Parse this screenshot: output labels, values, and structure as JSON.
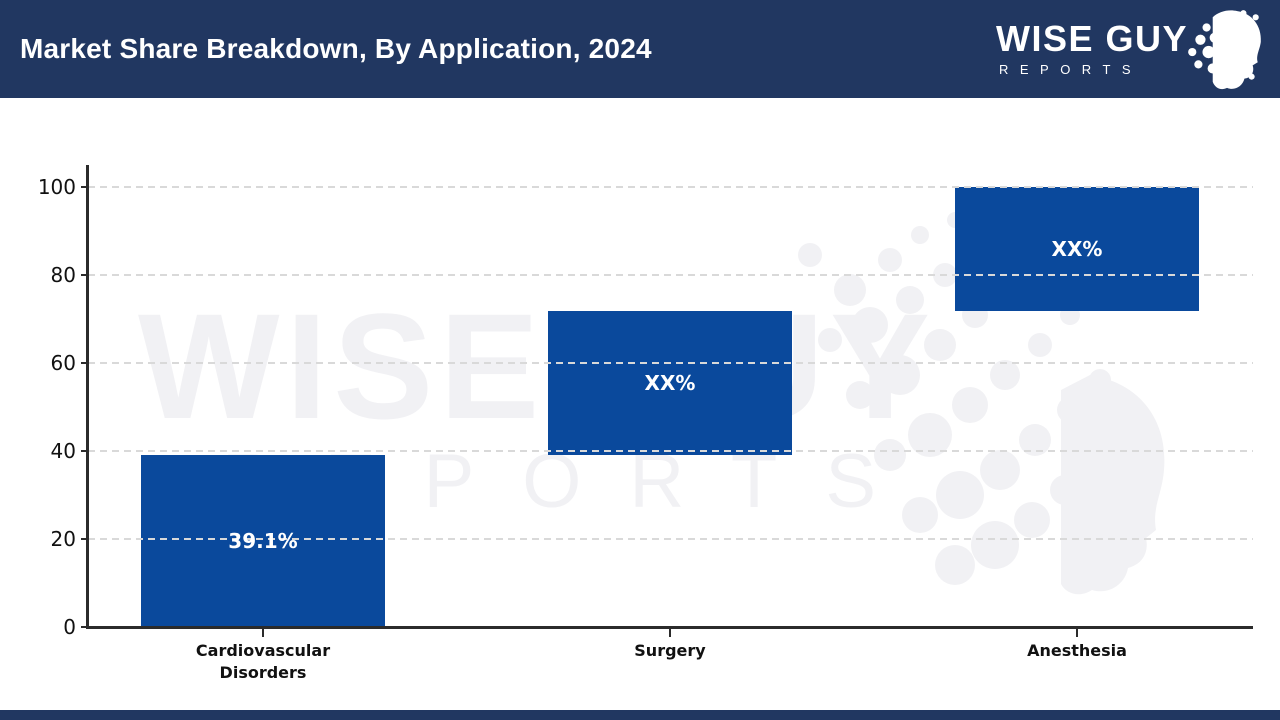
{
  "header": {
    "title": "Market Share Breakdown, By Application, 2024",
    "logo": {
      "line1": "WISE GUY",
      "line2": "REPORTS"
    }
  },
  "watermark": {
    "line1": "WISE GUY",
    "line2": "REPORTS"
  },
  "chart_data": {
    "type": "bar",
    "subtype": "waterfall",
    "title": "Market Share Breakdown, By Application, 2024",
    "categories": [
      "Cardiovascular Disorders",
      "Surgery",
      "Anesthesia"
    ],
    "segments": [
      {
        "category": "Cardiovascular Disorders",
        "start": 0,
        "end": 39.1,
        "label": "39.1%"
      },
      {
        "category": "Surgery",
        "start": 39.1,
        "end": 71.8,
        "label": "XX%"
      },
      {
        "category": "Anesthesia",
        "start": 71.8,
        "end": 100,
        "label": "XX%"
      }
    ],
    "ylim": [
      0,
      100
    ],
    "yticks": [
      0,
      20,
      40,
      60,
      80,
      100
    ],
    "grid": "dashed-horizontal",
    "legend": "none",
    "bar_color": "#0a499c",
    "bar_label_color": "#ffffff"
  },
  "colors": {
    "header_bg": "#213761",
    "footer_bg": "#213761",
    "bar": "#0a499c",
    "grid": "#d9d9d9",
    "axis": "#2b2b2b",
    "watermark": "#f1f1f4"
  }
}
